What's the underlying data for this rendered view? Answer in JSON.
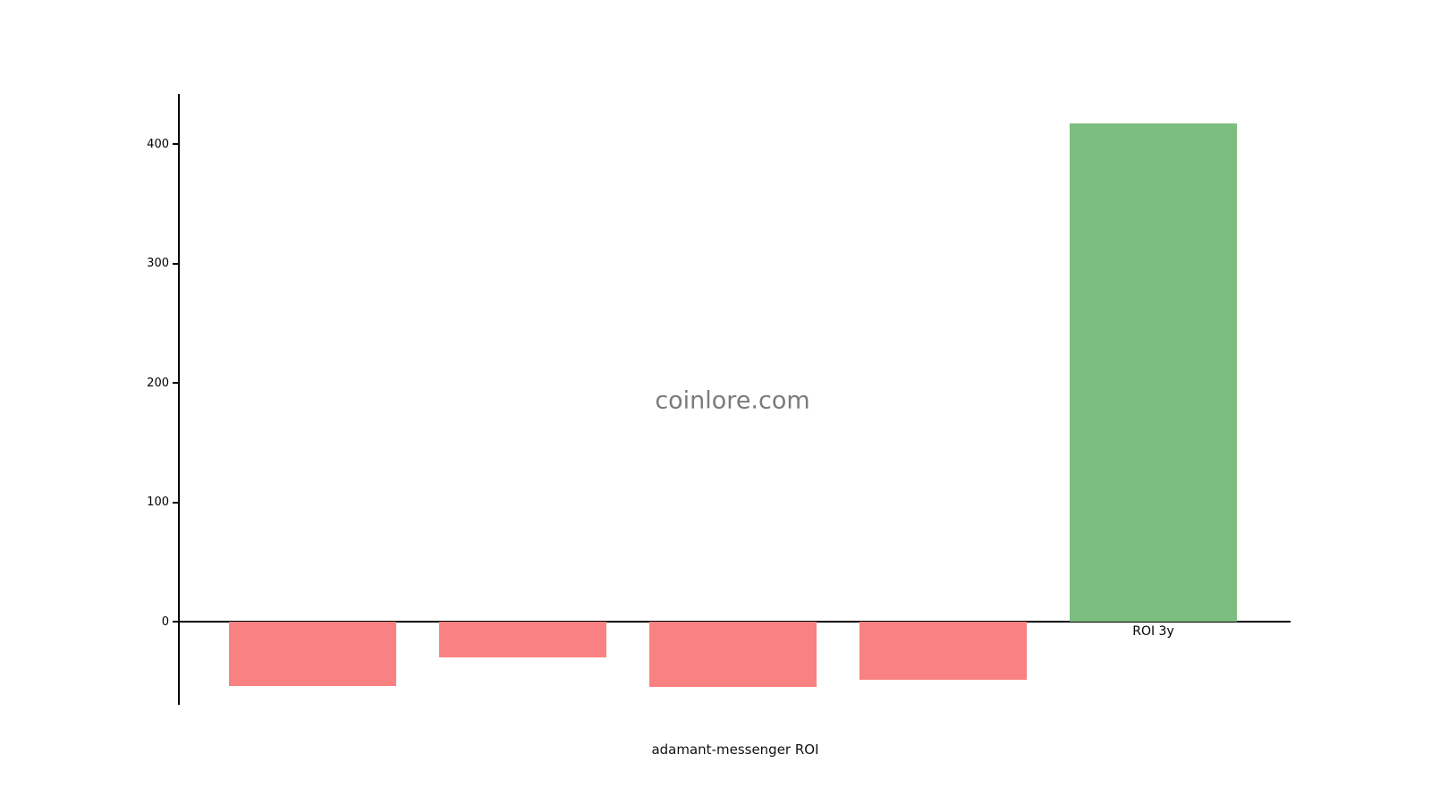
{
  "watermark": {
    "text": "coinlore.com",
    "color": "#7b7b7b"
  },
  "chart_data": {
    "type": "bar",
    "title": "",
    "xlabel": "adamant-messenger ROI",
    "ylabel": "",
    "categories": [
      "",
      "",
      "",
      "",
      "ROI 3y"
    ],
    "values": [
      -54,
      -30,
      -55,
      -49,
      417
    ],
    "y_ticks": [
      0,
      100,
      200,
      300,
      400
    ],
    "ylim": [
      -70,
      442
    ],
    "grid": false,
    "legend": "none",
    "colors": {
      "positive": "#7dbe80",
      "negative": "#fa8181",
      "axis": "#000000",
      "tick_text": "#000000"
    }
  }
}
